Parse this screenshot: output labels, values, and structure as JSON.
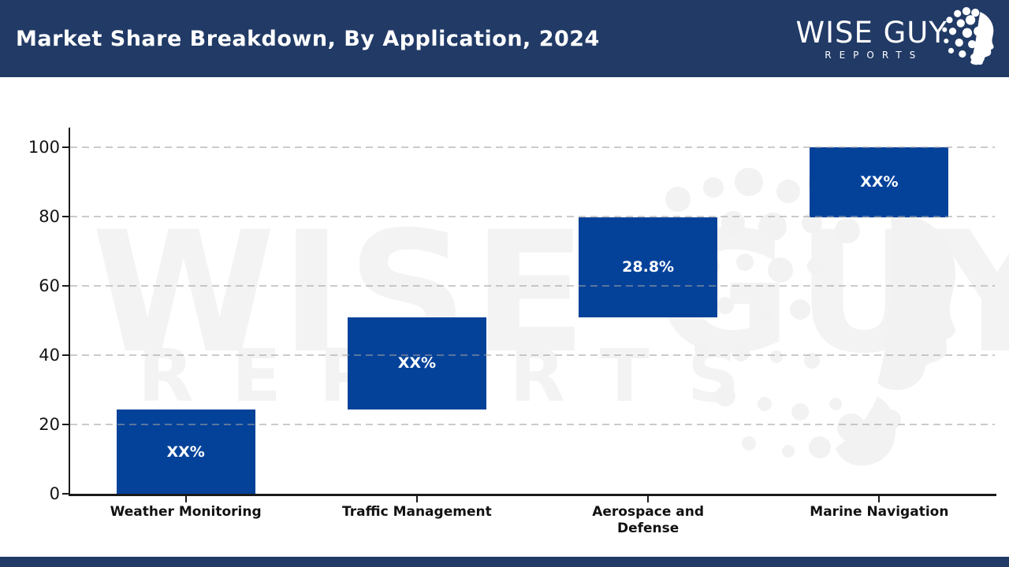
{
  "header": {
    "title": "Market Share Breakdown, By Application, 2024",
    "brand": {
      "line1": "WISE GUY",
      "line2": "REPORTS"
    }
  },
  "watermark": {
    "line1": "WISE GUY",
    "line2": "REPORTS"
  },
  "colors": {
    "header_bg": "#213a66",
    "bar_blue": "#04429a",
    "bar_label": "#ffffff",
    "watermark_gray": "#f2f2f2",
    "axis_black": "#1a1a1a"
  },
  "chart_data": {
    "type": "bar",
    "variant": "floating-segment (waterfall-style market share breakdown)",
    "title": "Market Share Breakdown, By Application, 2024",
    "categories": [
      "Weather Monitoring",
      "Traffic Management",
      "Aerospace and Defense",
      "Marine Navigation"
    ],
    "category_lines": [
      [
        "Weather Monitoring"
      ],
      [
        "Traffic Management"
      ],
      [
        "Aerospace and",
        "Defense"
      ],
      [
        "Marine Navigation"
      ]
    ],
    "segments": [
      {
        "category": "Weather Monitoring",
        "start": 0,
        "end": 24.3,
        "value_label": "XX%"
      },
      {
        "category": "Traffic Management",
        "start": 24.3,
        "end": 51.0,
        "value_label": "XX%"
      },
      {
        "category": "Aerospace and Defense",
        "start": 51.0,
        "end": 79.8,
        "value_label": "28.8%"
      },
      {
        "category": "Marine Navigation",
        "start": 79.8,
        "end": 100,
        "value_label": "XX%"
      }
    ],
    "xlabel": "",
    "ylabel": "",
    "ylim": [
      0,
      100
    ],
    "yticks": [
      0,
      20,
      40,
      60,
      80,
      100
    ],
    "grid": "horizontal dashed",
    "legend": "none"
  }
}
